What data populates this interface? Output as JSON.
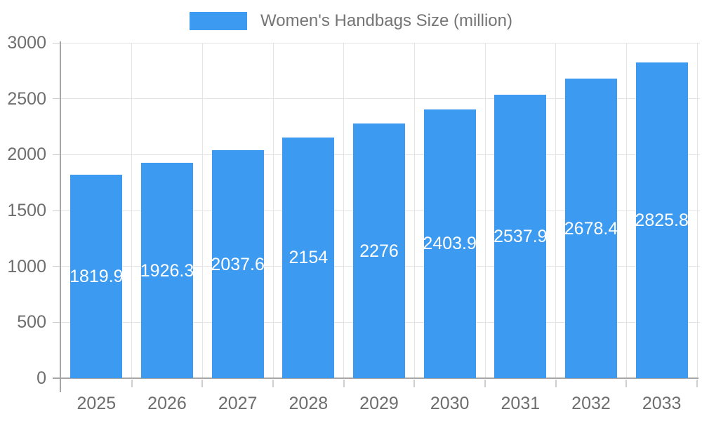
{
  "legend": {
    "label": "Women's Handbags Size (million)"
  },
  "chart_data": {
    "type": "bar",
    "title": "Women's Handbags Size (million)",
    "categories": [
      "2025",
      "2026",
      "2027",
      "2028",
      "2029",
      "2030",
      "2031",
      "2032",
      "2033"
    ],
    "values": [
      1819.9,
      1926.3,
      2037.6,
      2154,
      2276,
      2403.9,
      2537.9,
      2678.4,
      2825.8
    ],
    "value_labels": [
      "1819.9",
      "1926.3",
      "2037.6",
      "2154",
      "2276",
      "2403.9",
      "2537.9",
      "2678.4",
      "2825.8"
    ],
    "xlabel": "",
    "ylabel": "",
    "ylim": [
      0,
      3000
    ],
    "ytick_interval": 500,
    "ytick_labels": [
      "0",
      "500",
      "1000",
      "1500",
      "2000",
      "2500",
      "3000"
    ],
    "grid": true,
    "legend_position": "top",
    "colors": {
      "bar": "#3c9af0",
      "bar_value_text": "#ffffff",
      "axis_text": "#6e6e6e",
      "legend_text": "#757575",
      "gridline": "#e4e4e4",
      "axis_line": "#a6a6a6",
      "tick": "#cfcfcf"
    }
  }
}
